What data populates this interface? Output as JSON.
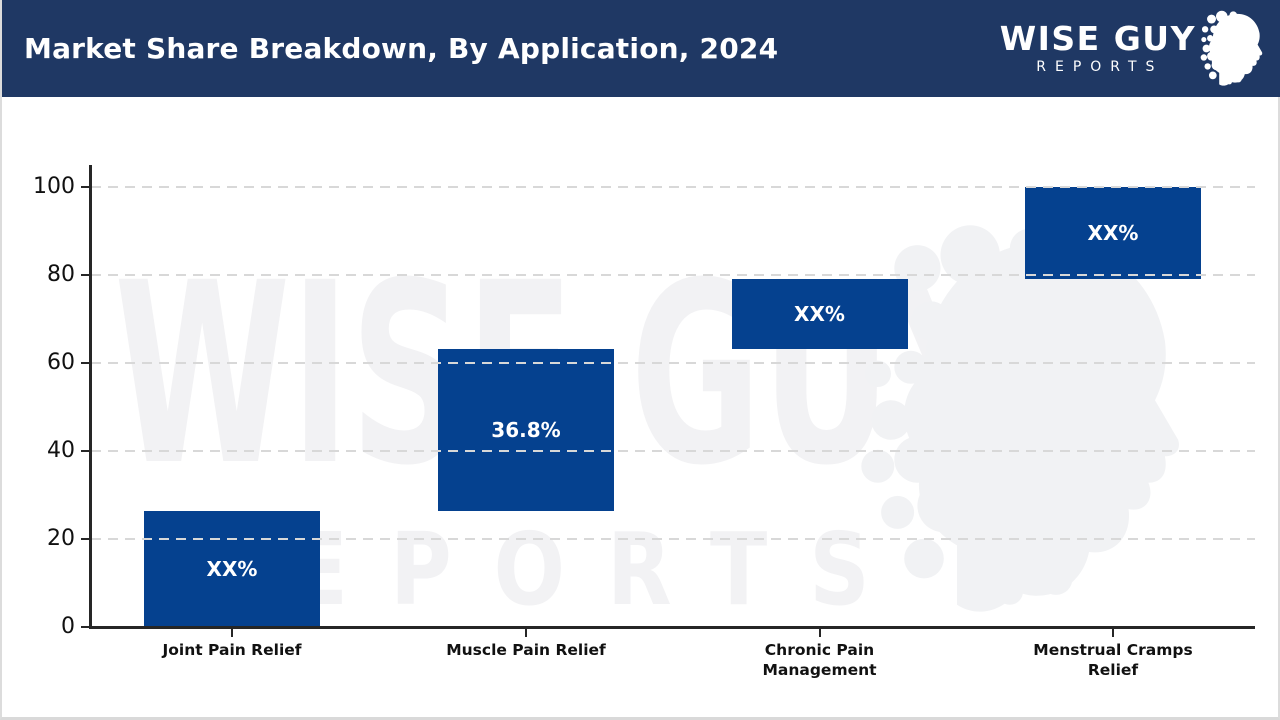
{
  "header": {
    "title": "Market Share Breakdown, By Application, 2024",
    "logo": {
      "line1": "WISE GUY",
      "line2": "REPORTS"
    }
  },
  "watermark": {
    "line1": "WISE GUY",
    "line2": "REPORTS"
  },
  "colors": {
    "header_bg": "#1F3864",
    "bar_blue": "#05418F",
    "grid_gray": "#D8D8D8",
    "axis_black": "#262626",
    "watermark_gray": "#F2F2F4",
    "bar_label_white": "#FFFFFF"
  },
  "chart_data": {
    "type": "bar",
    "subtype": "floating-segment-waterfall",
    "title": "Market Share Breakdown, By Application, 2024",
    "categories": [
      "Joint Pain Relief",
      "Muscle Pain Relief",
      "Chronic Pain\nManagement",
      "Menstrual Cramps\nRelief"
    ],
    "segments": [
      {
        "start": 0,
        "end": 26.4,
        "label": "XX%"
      },
      {
        "start": 26.4,
        "end": 63.2,
        "label": "36.8%"
      },
      {
        "start": 63.2,
        "end": 79.2,
        "label": "XX%"
      },
      {
        "start": 79.2,
        "end": 100,
        "label": "XX%"
      }
    ],
    "values_shown": [
      "XX%",
      "36.8%",
      "XX%",
      "XX%"
    ],
    "xlabel": "",
    "ylabel": "",
    "ylim": [
      0,
      100
    ],
    "yticks": [
      0,
      20,
      40,
      60,
      80,
      100
    ],
    "grid": "horizontal dashed, drawn over bars",
    "legend": "none",
    "bar_color": "#05418F"
  }
}
